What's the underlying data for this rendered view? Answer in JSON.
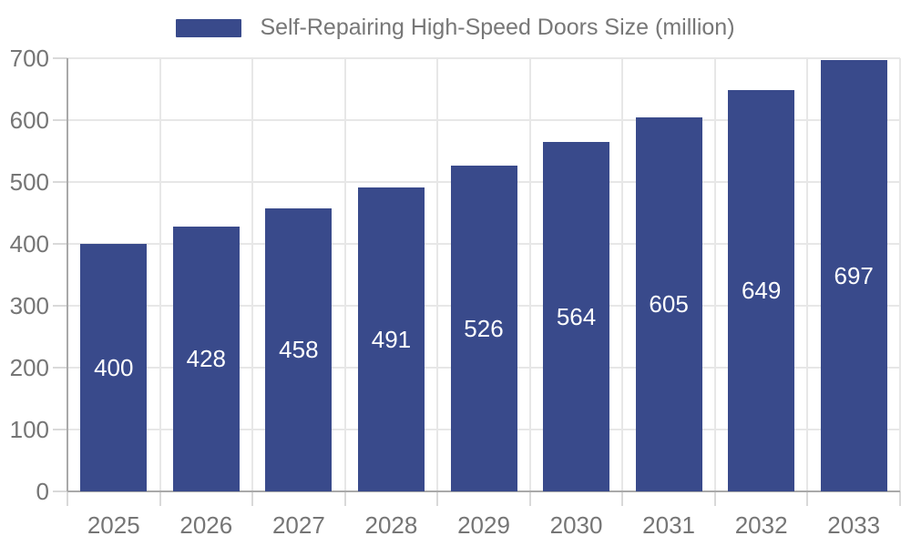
{
  "legend": {
    "label": "Self-Repairing High-Speed Doors Size (million)"
  },
  "chart_data": {
    "type": "bar",
    "title": "Self-Repairing High-Speed Doors Size (million)",
    "categories": [
      "2025",
      "2026",
      "2027",
      "2028",
      "2029",
      "2030",
      "2031",
      "2032",
      "2033"
    ],
    "values": [
      400,
      428,
      458,
      491,
      526,
      564,
      605,
      649,
      697
    ],
    "series": [
      {
        "name": "Self-Repairing High-Speed Doors Size (million)",
        "values": [
          400,
          428,
          458,
          491,
          526,
          564,
          605,
          649,
          697
        ]
      }
    ],
    "xlabel": "",
    "ylabel": "",
    "ylim": [
      0,
      700
    ],
    "yticks": [
      "0",
      "100",
      "200",
      "300",
      "400",
      "500",
      "600",
      "700"
    ],
    "grid": true,
    "legend_position": "top",
    "bar_value_labels": true,
    "colors": {
      "bar": "#394A8B",
      "bar_value_label": "#FFFFFF",
      "axis_text": "#757575",
      "legend_text": "#777777",
      "gridline": "#E7E7E7",
      "axis_line": "#A9A9A9",
      "tick": "#D9D9D9",
      "background": "#FFFFFF"
    }
  }
}
